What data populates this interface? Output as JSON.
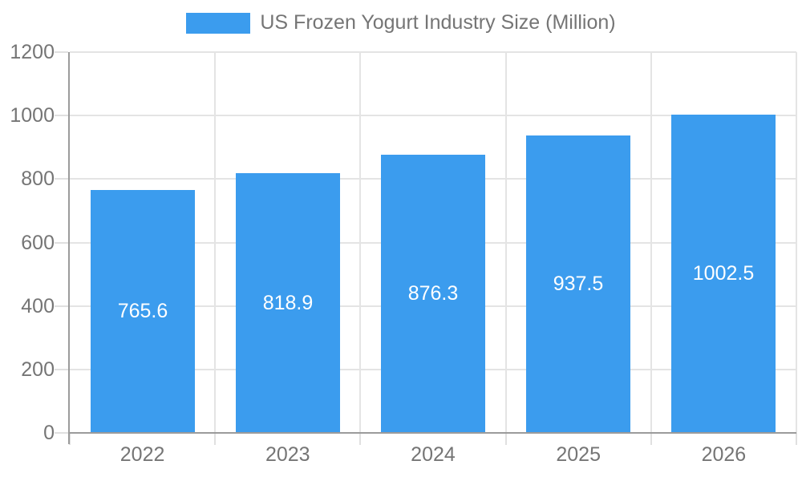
{
  "chart_data": {
    "type": "bar",
    "title": "US Frozen Yogurt Industry Size (Million)",
    "legend_position": "top",
    "categories": [
      "2022",
      "2023",
      "2024",
      "2025",
      "2026"
    ],
    "series": [
      {
        "name": "US Frozen Yogurt Industry Size (Million)",
        "values": [
          765.6,
          818.9,
          876.3,
          937.5,
          1002.5
        ]
      }
    ],
    "value_labels": [
      "765.6",
      "818.9",
      "876.3",
      "937.5",
      "1002.5"
    ],
    "xlabel": "",
    "ylabel": "",
    "ylim": [
      0,
      1200
    ],
    "yticks": [
      0,
      200,
      400,
      600,
      800,
      1000,
      1200
    ],
    "grid": true,
    "colors": {
      "bar": "#3B9CEE",
      "gridline": "#E4E4E4",
      "axis": "#9B9B9B",
      "tick": "#E0E0E0",
      "axis_text": "#757575",
      "value_text": "#FFFFFF",
      "background": "#FFFFFF"
    }
  }
}
